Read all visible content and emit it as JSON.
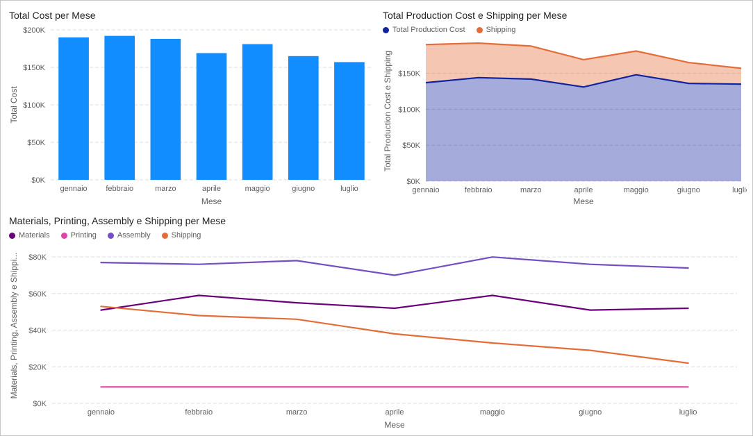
{
  "app": {
    "background": "#ffffff",
    "border_color": "#c6c6c6",
    "title_color": "#252423",
    "axis_text_color": "#605E5C",
    "gridline_color": "#DCDCDC"
  },
  "chart_data": [
    {
      "type": "bar",
      "title": "Total Cost per Mese",
      "xlabel": "Mese",
      "ylabel": "Total Cost",
      "categories": [
        "gennaio",
        "febbraio",
        "marzo",
        "aprile",
        "maggio",
        "giugno",
        "luglio"
      ],
      "values": [
        190,
        192,
        188,
        169,
        181,
        165,
        157
      ],
      "color": "#118DFF",
      "ylim": [
        0,
        200
      ],
      "yticks": [
        0,
        50,
        100,
        150,
        200
      ],
      "ytick_labels": [
        "$0K",
        "$50K",
        "$100K",
        "$150K",
        "$200K"
      ],
      "grid": true,
      "legend_position": "none",
      "units": "thousand USD"
    },
    {
      "type": "area",
      "title": "Total Production Cost e Shipping per Mese",
      "xlabel": "Mese",
      "ylabel": "Total Production Cost e Shipping",
      "categories": [
        "gennaio",
        "febbraio",
        "marzo",
        "aprile",
        "maggio",
        "giugno",
        "luglio"
      ],
      "stacked": true,
      "series": [
        {
          "name": "Total Production Cost",
          "color": "#12239E",
          "values": [
            137,
            144,
            142,
            131,
            148,
            136,
            135
          ]
        },
        {
          "name": "Shipping",
          "color": "#E66C37",
          "values": [
            53,
            48,
            46,
            38,
            33,
            29,
            22
          ]
        }
      ],
      "ylim": [
        0,
        195
      ],
      "yticks": [
        0,
        50,
        100,
        150
      ],
      "ytick_labels": [
        "$0K",
        "$50K",
        "$100K",
        "$150K"
      ],
      "grid": true,
      "legend_position": "top",
      "units": "thousand USD"
    },
    {
      "type": "line",
      "title": "Materials, Printing, Assembly e Shipping per Mese",
      "xlabel": "Mese",
      "ylabel": "Materials, Printing, Assembly e Shippi...",
      "categories": [
        "gennaio",
        "febbraio",
        "marzo",
        "aprile",
        "maggio",
        "giugno",
        "luglio"
      ],
      "series": [
        {
          "name": "Materials",
          "color": "#6B007B",
          "values": [
            51,
            59,
            55,
            52,
            59,
            51,
            52
          ]
        },
        {
          "name": "Printing",
          "color": "#E044A7",
          "values": [
            9,
            9,
            9,
            9,
            9,
            9,
            9
          ]
        },
        {
          "name": "Assembly",
          "color": "#744EC2",
          "values": [
            77,
            76,
            78,
            70,
            80,
            76,
            74
          ]
        },
        {
          "name": "Shipping",
          "color": "#E66C37",
          "values": [
            53,
            48,
            46,
            38,
            33,
            29,
            22
          ]
        }
      ],
      "ylim": [
        0,
        85
      ],
      "yticks": [
        0,
        20,
        40,
        60,
        80
      ],
      "ytick_labels": [
        "$0K",
        "$20K",
        "$40K",
        "$60K",
        "$80K"
      ],
      "grid": true,
      "legend_position": "top",
      "units": "thousand USD"
    }
  ]
}
